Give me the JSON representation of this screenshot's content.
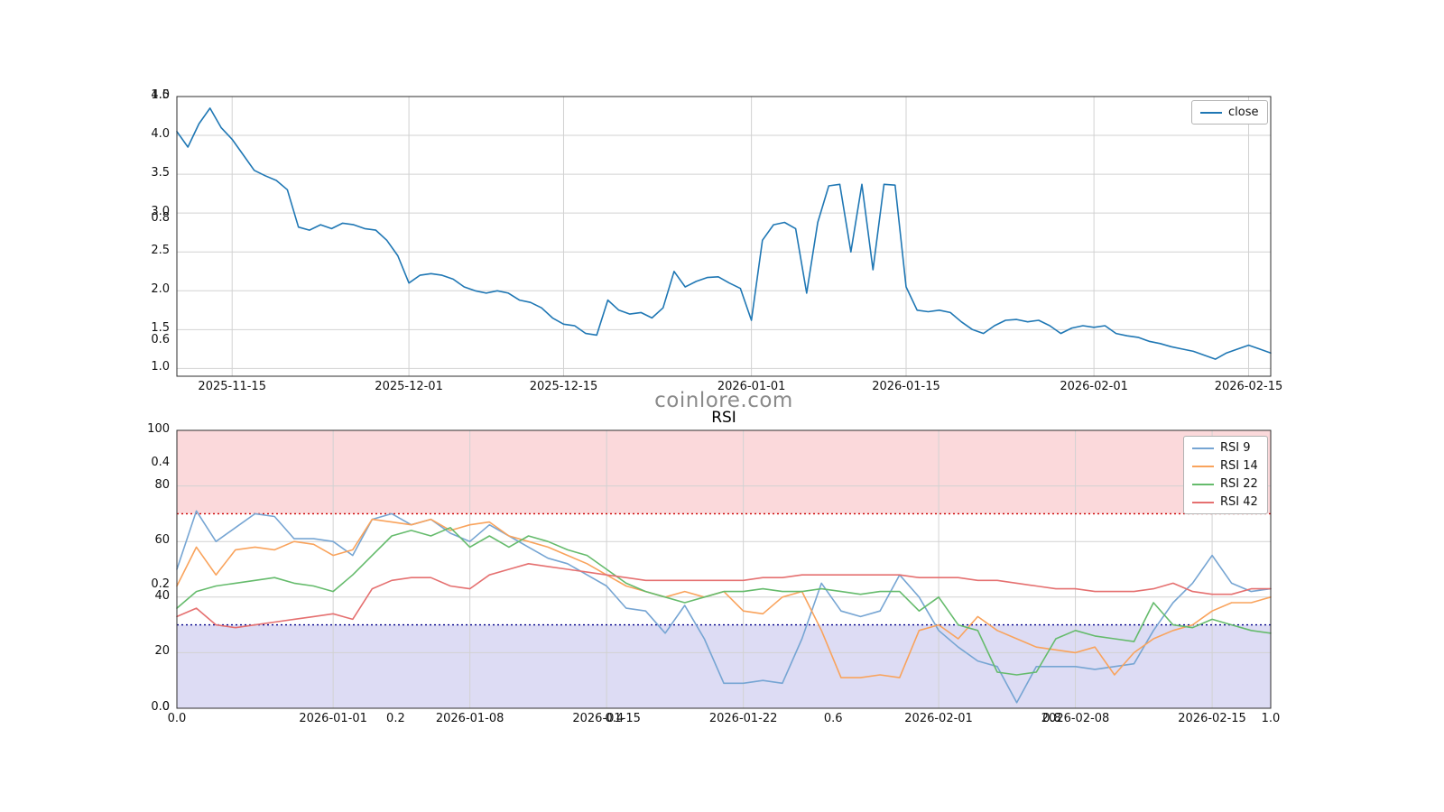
{
  "watermark": "coinlore.com",
  "overlay_axis": {
    "x": [
      "0.0",
      "0.2",
      "0.4",
      "0.6",
      "0.8",
      "1.0"
    ],
    "y": [
      "0.0",
      "0.2",
      "0.4",
      "0.6",
      "0.8",
      "1.0"
    ]
  },
  "chart_data": [
    {
      "type": "line",
      "title": "",
      "ylabel": "",
      "xlabel": "",
      "ylim": [
        0.9,
        4.5
      ],
      "grid": true,
      "legend_position": "top-right",
      "yticks": [
        "1.0",
        "1.5",
        "2.0",
        "2.5",
        "3.0",
        "3.5",
        "4.0",
        "4.5"
      ],
      "xticks": [
        {
          "i": 5,
          "label": "2025-11-15"
        },
        {
          "i": 21,
          "label": "2025-12-01"
        },
        {
          "i": 35,
          "label": "2025-12-15"
        },
        {
          "i": 52,
          "label": "2026-01-01"
        },
        {
          "i": 66,
          "label": "2026-01-15"
        },
        {
          "i": 83,
          "label": "2026-02-01"
        },
        {
          "i": 97,
          "label": "2026-02-15"
        }
      ],
      "series": [
        {
          "name": "close",
          "color": "#1f77b4",
          "values": [
            4.05,
            3.85,
            4.15,
            4.35,
            4.1,
            3.95,
            3.75,
            3.55,
            3.48,
            3.42,
            3.3,
            2.82,
            2.78,
            2.85,
            2.8,
            2.87,
            2.85,
            2.8,
            2.78,
            2.65,
            2.45,
            2.1,
            2.2,
            2.22,
            2.2,
            2.15,
            2.05,
            2.0,
            1.97,
            2.0,
            1.97,
            1.88,
            1.85,
            1.78,
            1.65,
            1.57,
            1.55,
            1.45,
            1.43,
            1.88,
            1.75,
            1.7,
            1.72,
            1.65,
            1.78,
            2.25,
            2.05,
            2.12,
            2.17,
            2.18,
            2.1,
            2.03,
            1.62,
            2.65,
            2.85,
            2.88,
            2.8,
            1.97,
            2.88,
            3.35,
            3.37,
            2.5,
            3.37,
            2.27,
            3.37,
            3.36,
            2.05,
            1.75,
            1.73,
            1.75,
            1.72,
            1.6,
            1.5,
            1.45,
            1.55,
            1.62,
            1.63,
            1.6,
            1.62,
            1.55,
            1.45,
            1.52,
            1.55,
            1.53,
            1.55,
            1.45,
            1.42,
            1.4,
            1.35,
            1.32,
            1.28,
            1.25,
            1.22,
            1.17,
            1.12,
            1.2,
            1.25,
            1.3,
            1.25,
            1.2
          ]
        }
      ]
    },
    {
      "type": "line",
      "title": "RSI",
      "ylabel": "",
      "xlabel": "",
      "ylim": [
        0,
        100
      ],
      "grid": true,
      "legend_position": "top-right",
      "yticks": [
        "0",
        "20",
        "40",
        "60",
        "80",
        "100"
      ],
      "xticks": [
        {
          "i": 8,
          "label": "2026-01-01"
        },
        {
          "i": 15,
          "label": "2026-01-08"
        },
        {
          "i": 22,
          "label": "2026-01-15"
        },
        {
          "i": 29,
          "label": "2026-01-22"
        },
        {
          "i": 39,
          "label": "2026-02-01"
        },
        {
          "i": 46,
          "label": "2026-02-08"
        },
        {
          "i": 53,
          "label": "2026-02-15"
        }
      ],
      "bands": [
        {
          "name": "overbought-band",
          "from": 70,
          "to": 100,
          "color": "#fbd9db"
        },
        {
          "name": "oversold-band",
          "from": 0,
          "to": 30,
          "color": "#dddcf4"
        }
      ],
      "hlines": [
        {
          "y": 70,
          "color": "#cc0000",
          "style": "dotted",
          "name": "overbought-line"
        },
        {
          "y": 30,
          "color": "#00008b",
          "style": "dotted",
          "name": "oversold-line"
        }
      ],
      "series": [
        {
          "name": "RSI 9",
          "color": "#76a5d3",
          "values": [
            50,
            71,
            60,
            65,
            70,
            69,
            61,
            61,
            60,
            55,
            68,
            70,
            66,
            68,
            63,
            60,
            66,
            62,
            58,
            54,
            52,
            48,
            44,
            36,
            35,
            27,
            37,
            25,
            9,
            9,
            10,
            9,
            25,
            45,
            35,
            33,
            35,
            48,
            40,
            28,
            22,
            17,
            15,
            2,
            15,
            15,
            15,
            14,
            15,
            16,
            28,
            38,
            45,
            55,
            45,
            42,
            43
          ]
        },
        {
          "name": "RSI 14",
          "color": "#f9a35c",
          "values": [
            44,
            58,
            48,
            57,
            58,
            57,
            60,
            59,
            55,
            57,
            68,
            67,
            66,
            68,
            64,
            66,
            67,
            62,
            60,
            58,
            55,
            52,
            48,
            44,
            42,
            40,
            42,
            40,
            42,
            35,
            34,
            40,
            42,
            28,
            11,
            11,
            12,
            11,
            28,
            30,
            25,
            33,
            28,
            25,
            22,
            21,
            20,
            22,
            12,
            20,
            25,
            28,
            30,
            35,
            38,
            38,
            40
          ]
        },
        {
          "name": "RSI 22",
          "color": "#65bb6c",
          "values": [
            36,
            42,
            44,
            45,
            46,
            47,
            45,
            44,
            42,
            48,
            55,
            62,
            64,
            62,
            65,
            58,
            62,
            58,
            62,
            60,
            57,
            55,
            50,
            45,
            42,
            40,
            38,
            40,
            42,
            42,
            43,
            42,
            42,
            43,
            42,
            41,
            42,
            42,
            35,
            40,
            30,
            28,
            13,
            12,
            13,
            25,
            28,
            26,
            25,
            24,
            38,
            30,
            29,
            32,
            30,
            28,
            27
          ]
        },
        {
          "name": "RSI 42",
          "color": "#e57070",
          "values": [
            33,
            36,
            30,
            29,
            30,
            31,
            32,
            33,
            34,
            32,
            43,
            46,
            47,
            47,
            44,
            43,
            48,
            50,
            52,
            51,
            50,
            49,
            48,
            47,
            46,
            46,
            46,
            46,
            46,
            46,
            47,
            47,
            48,
            48,
            48,
            48,
            48,
            48,
            47,
            47,
            47,
            46,
            46,
            45,
            44,
            43,
            43,
            42,
            42,
            42,
            43,
            45,
            42,
            41,
            41,
            43,
            43
          ]
        }
      ]
    }
  ]
}
